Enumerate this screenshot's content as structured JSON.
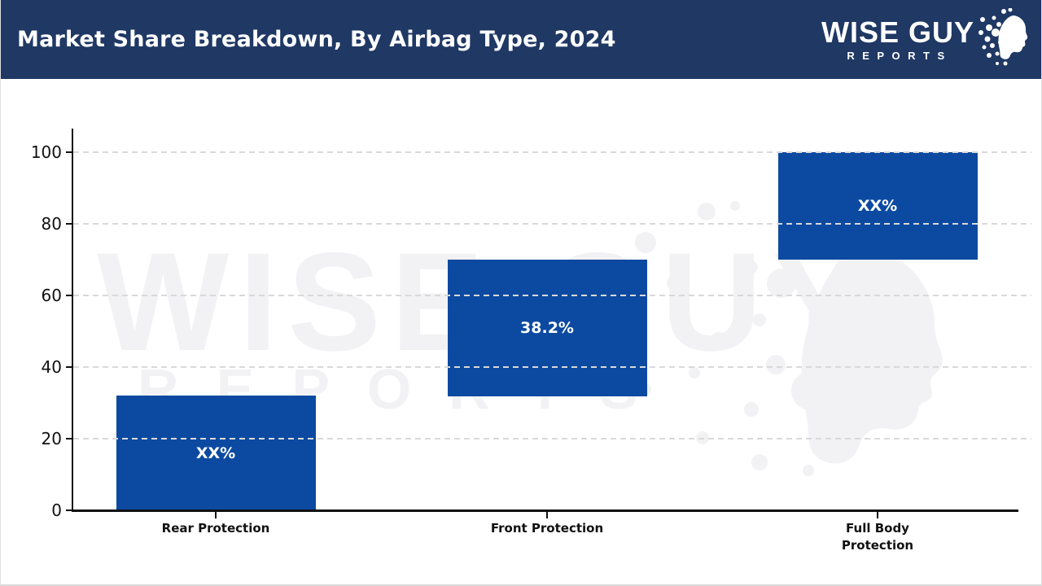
{
  "header": {
    "title": "Market Share Breakdown, By Airbag Type, 2024",
    "brand_name": "WISE GUY",
    "brand_subtitle": "REPORTS"
  },
  "watermark": {
    "line1": "WISE GUY",
    "line2": "REPORTS"
  },
  "colors": {
    "header_bg": "#1f3864",
    "bar": "#0c4aa1",
    "axis": "#111111",
    "grid": "#d9d9d9",
    "watermark": "#f2f2f4",
    "bar_label_text": "#ffffff"
  },
  "chart_data": {
    "type": "bar",
    "subtype": "floating_stacked_percentage_bars",
    "title": "Market Share Breakdown, By Airbag Type, 2024",
    "categories": [
      "Rear Protection",
      "Front Protection",
      "Full Body Protection"
    ],
    "category_lines": [
      [
        "Rear Protection"
      ],
      [
        "Front Protection"
      ],
      [
        "Full Body",
        "Protection"
      ]
    ],
    "segments": [
      {
        "category": "Rear Protection",
        "start": 0,
        "end": 32,
        "label": "XX%"
      },
      {
        "category": "Front Protection",
        "start": 31.8,
        "end": 70,
        "label": "38.2%"
      },
      {
        "category": "Full Body Protection",
        "start": 70,
        "end": 100,
        "label": "XX%"
      }
    ],
    "known_values": {
      "Front Protection": 38.2
    },
    "masked_value_label": "XX%",
    "ylim": [
      0,
      100
    ],
    "yticks": [
      0,
      20,
      40,
      60,
      80,
      100
    ],
    "ytick_labels": [
      "0",
      "20",
      "40",
      "60",
      "80",
      "100"
    ],
    "xlabel": "",
    "ylabel": "",
    "grid": "horizontal-dashed-over-bars",
    "legend": null
  }
}
